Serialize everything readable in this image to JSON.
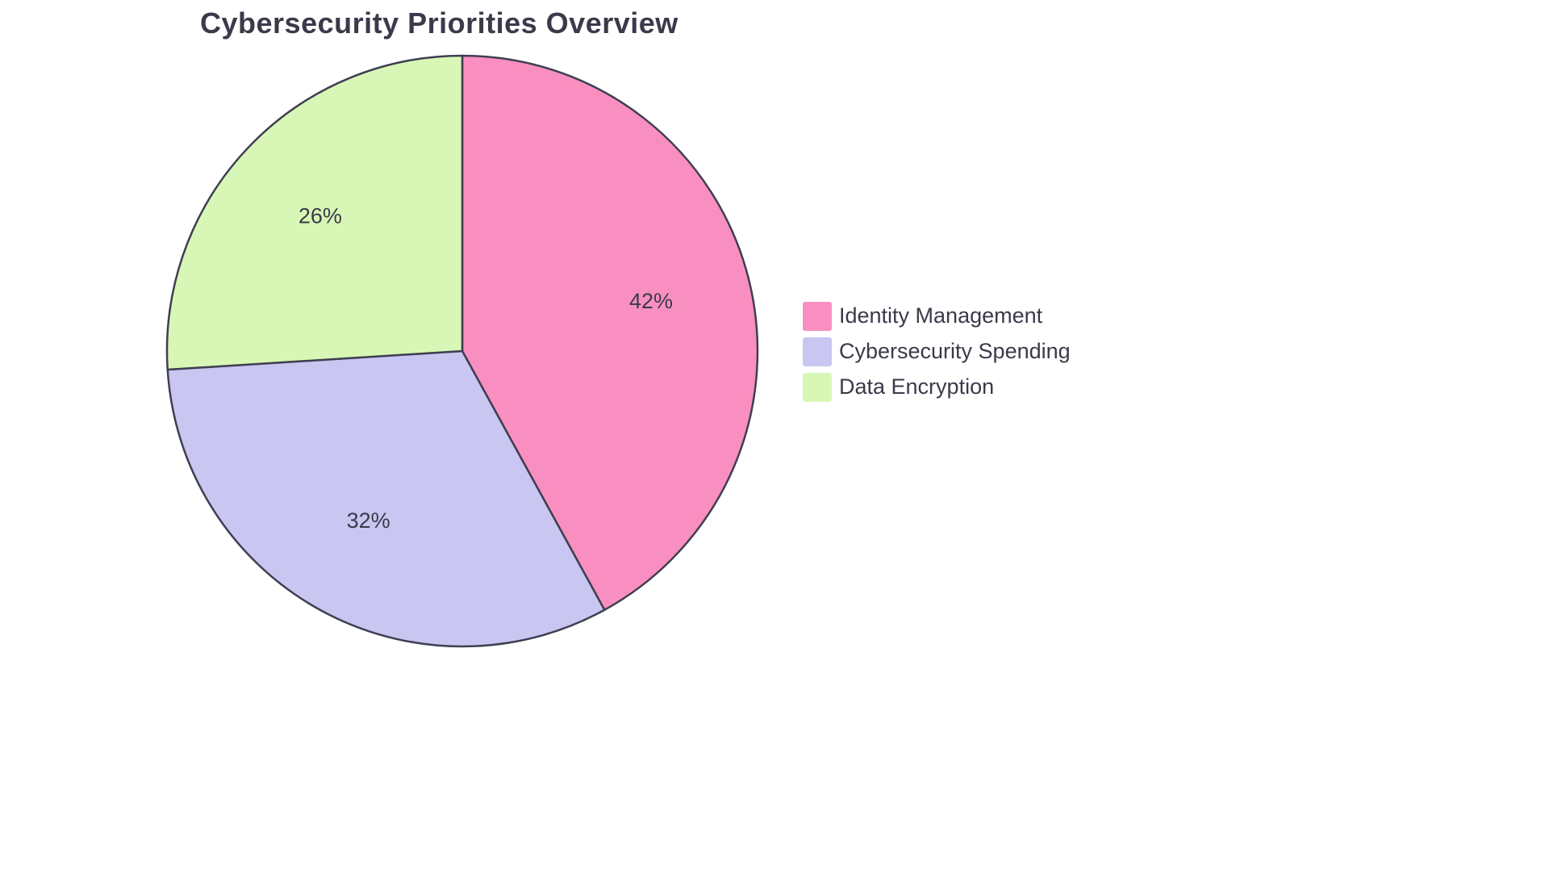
{
  "chart_data": {
    "type": "pie",
    "title": "Cybersecurity Priorities Overview",
    "legend_position": "right",
    "direction": "clockwise",
    "start_angle_deg": 0,
    "stroke_color": "#3f3f52",
    "background_color": "#ffffff",
    "slices": [
      {
        "label": "Identity Management",
        "value": 42,
        "pct_label": "42%",
        "color": "#f98fc0"
      },
      {
        "label": "Cybersecurity Spending",
        "value": 32,
        "pct_label": "32%",
        "color": "#c9c6f2"
      },
      {
        "label": "Data Encryption",
        "value": 26,
        "pct_label": "26%",
        "color": "#d8f7b6"
      }
    ]
  }
}
